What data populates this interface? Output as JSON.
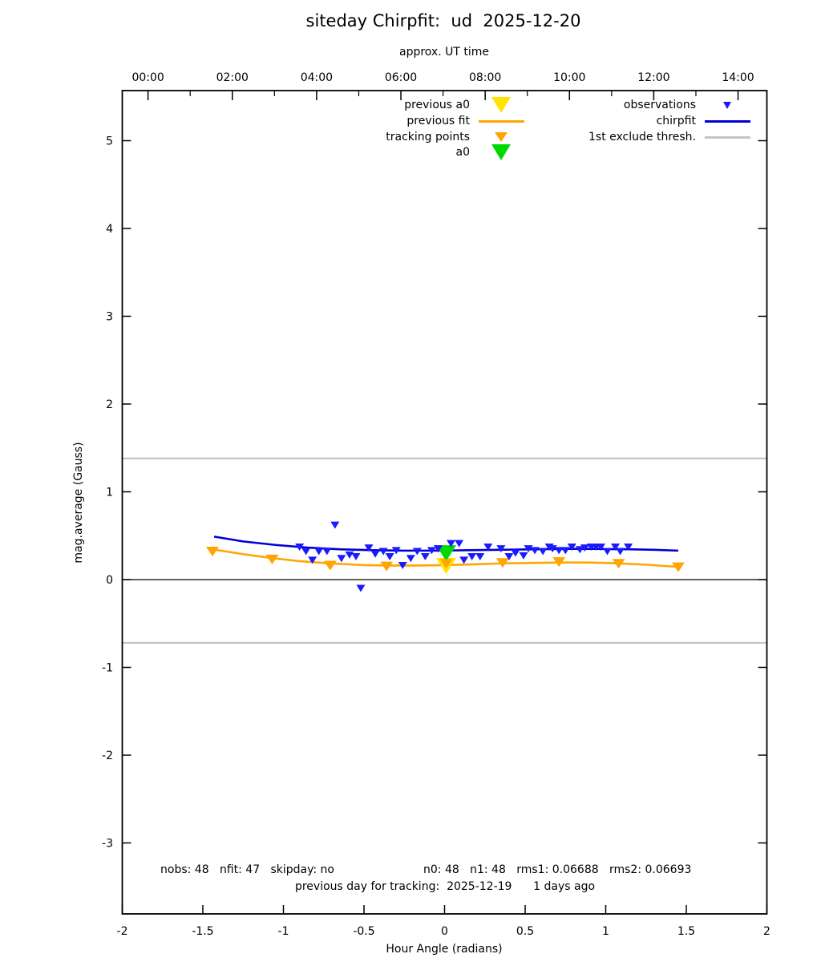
{
  "title": "siteday Chirpfit:  ud  2025-12-20",
  "top_axis": {
    "label": "approx. UT time"
  },
  "y_axis": {
    "label": "mag.average (Gauss)"
  },
  "x_axis": {
    "label": "Hour Angle (radians)"
  },
  "legend": {
    "left": [
      {
        "label": "previous a0",
        "marker": "triangle-down",
        "size": "large",
        "color": "#ffe400"
      },
      {
        "label": "previous fit",
        "marker": "line",
        "color": "#ffa500"
      },
      {
        "label": "tracking points",
        "marker": "triangle-down",
        "size": "small",
        "color": "#ffa500"
      },
      {
        "label": "a0",
        "marker": "triangle-down",
        "size": "large",
        "color": "#00d900"
      }
    ],
    "right": [
      {
        "label": "observations",
        "marker": "triangle-down",
        "size": "tiny",
        "color": "#1a1aff"
      },
      {
        "label": "chirpfit",
        "marker": "line",
        "color": "#0000d6"
      },
      {
        "label": "1st exclude thresh.",
        "marker": "line",
        "color": "#c4c4c4"
      }
    ]
  },
  "footer": {
    "line1_left": "nobs: 48   nfit: 47   skipday: no",
    "line1_right": "n0: 48   n1: 48   rms1: 0.06688   rms2: 0.06693",
    "line2": "previous day for tracking:  2025-12-19      1 days ago"
  },
  "chart_data": {
    "type": "scatter",
    "title": "siteday Chirpfit:  ud  2025-12-20",
    "xlabel": "Hour Angle (radians)",
    "ylabel": "mag.average (Gauss)",
    "top_axis_label": "approx. UT time",
    "xlim": [
      -2,
      2
    ],
    "ylim": [
      -3.85,
      5.57
    ],
    "grid": false,
    "legend_position": "inside-top",
    "yticks": [
      -3,
      -2,
      -1,
      0,
      1,
      2,
      3,
      4,
      5
    ],
    "xticks": [
      "-2",
      "-1.5",
      "-1",
      "-0.5",
      "0",
      "0.5",
      "1",
      "1.5",
      "2"
    ],
    "top_hour_ticks": {
      "major_hours": [
        0,
        2,
        4,
        6,
        8,
        10,
        12,
        14
      ],
      "minor_hours": [
        1,
        3,
        5,
        7,
        9,
        11,
        13
      ],
      "labels": [
        "00:00",
        "02:00",
        "04:00",
        "06:00",
        "08:00",
        "10:00",
        "12:00",
        "14:00"
      ],
      "ha_at_hour0": -1.84,
      "rad_per_hour": 0.2615
    },
    "zero_line": 0,
    "exclude_thresholds": [
      1.38,
      -0.72
    ],
    "colors": {
      "observations": "#1a1aff",
      "chirpfit": "#0000d6",
      "previous_fit": "#ffa500",
      "tracking_points": "#ffa500",
      "previous_a0": "#ffe400",
      "a0": "#00d900",
      "exclude_threshold": "#c4c4c4",
      "zero_line": "#000000"
    },
    "series": [
      {
        "name": "observations",
        "type": "scatter",
        "marker": "triangle-down",
        "color": "#1a1aff",
        "points": [
          [
            -0.9,
            0.37
          ],
          [
            -0.86,
            0.32
          ],
          [
            -0.82,
            0.22
          ],
          [
            -0.78,
            0.32
          ],
          [
            -0.73,
            0.32
          ],
          [
            -0.68,
            0.62
          ],
          [
            -0.64,
            0.24
          ],
          [
            -0.59,
            0.28
          ],
          [
            -0.55,
            0.26
          ],
          [
            -0.52,
            -0.1
          ],
          [
            -0.47,
            0.36
          ],
          [
            -0.43,
            0.29
          ],
          [
            -0.38,
            0.32
          ],
          [
            -0.34,
            0.26
          ],
          [
            -0.3,
            0.33
          ],
          [
            -0.26,
            0.16
          ],
          [
            -0.21,
            0.24
          ],
          [
            -0.17,
            0.32
          ],
          [
            -0.12,
            0.26
          ],
          [
            -0.08,
            0.33
          ],
          [
            -0.04,
            0.35
          ],
          [
            0.04,
            0.41
          ],
          [
            0.09,
            0.41
          ],
          [
            0.12,
            0.22
          ],
          [
            0.17,
            0.26
          ],
          [
            0.22,
            0.26
          ],
          [
            0.27,
            0.37
          ],
          [
            0.35,
            0.35
          ],
          [
            0.4,
            0.26
          ],
          [
            0.44,
            0.3
          ],
          [
            0.49,
            0.27
          ],
          [
            0.52,
            0.35
          ],
          [
            0.56,
            0.33
          ],
          [
            0.61,
            0.32
          ],
          [
            0.65,
            0.37
          ],
          [
            0.67,
            0.35
          ],
          [
            0.71,
            0.33
          ],
          [
            0.75,
            0.33
          ],
          [
            0.79,
            0.37
          ],
          [
            0.84,
            0.34
          ],
          [
            0.87,
            0.36
          ],
          [
            0.91,
            0.37
          ],
          [
            0.94,
            0.37
          ],
          [
            0.97,
            0.37
          ],
          [
            1.01,
            0.32
          ],
          [
            1.06,
            0.37
          ],
          [
            1.09,
            0.32
          ],
          [
            1.14,
            0.37
          ]
        ]
      },
      {
        "name": "chirpfit",
        "type": "line",
        "color": "#0000d6",
        "points": [
          [
            -1.43,
            0.49
          ],
          [
            -1.25,
            0.435
          ],
          [
            -1.05,
            0.395
          ],
          [
            -0.85,
            0.365
          ],
          [
            -0.65,
            0.345
          ],
          [
            -0.45,
            0.335
          ],
          [
            -0.25,
            0.33
          ],
          [
            -0.05,
            0.33
          ],
          [
            0.15,
            0.335
          ],
          [
            0.35,
            0.34
          ],
          [
            0.55,
            0.345
          ],
          [
            0.75,
            0.35
          ],
          [
            0.95,
            0.35
          ],
          [
            1.15,
            0.345
          ],
          [
            1.3,
            0.34
          ],
          [
            1.45,
            0.33
          ]
        ]
      },
      {
        "name": "previous fit",
        "type": "line",
        "color": "#ffa500",
        "points": [
          [
            -1.44,
            0.345
          ],
          [
            -1.25,
            0.29
          ],
          [
            -1.07,
            0.245
          ],
          [
            -0.9,
            0.21
          ],
          [
            -0.71,
            0.185
          ],
          [
            -0.5,
            0.165
          ],
          [
            -0.36,
            0.16
          ],
          [
            -0.2,
            0.16
          ],
          [
            0.01,
            0.165
          ],
          [
            0.2,
            0.175
          ],
          [
            0.36,
            0.185
          ],
          [
            0.55,
            0.19
          ],
          [
            0.71,
            0.195
          ],
          [
            0.9,
            0.195
          ],
          [
            1.08,
            0.185
          ],
          [
            1.25,
            0.17
          ],
          [
            1.45,
            0.145
          ]
        ]
      },
      {
        "name": "tracking points",
        "type": "scatter",
        "marker": "triangle-down",
        "color": "#ffa500",
        "points": [
          [
            -1.44,
            0.32
          ],
          [
            -1.07,
            0.23
          ],
          [
            -0.71,
            0.16
          ],
          [
            -0.36,
            0.15
          ],
          [
            0.01,
            0.18
          ],
          [
            0.36,
            0.19
          ],
          [
            0.71,
            0.2
          ],
          [
            1.08,
            0.18
          ],
          [
            1.45,
            0.14
          ]
        ]
      },
      {
        "name": "previous a0",
        "type": "scatter",
        "marker": "triangle-down",
        "color": "#ffe400",
        "points": [
          [
            0.01,
            0.155
          ]
        ]
      },
      {
        "name": "a0",
        "type": "scatter",
        "marker": "triangle-down",
        "color": "#00d900",
        "points": [
          [
            0.01,
            0.3
          ]
        ]
      }
    ],
    "stats": {
      "nobs": 48,
      "nfit": 47,
      "skipday": "no",
      "n0": 48,
      "n1": 48,
      "rms1": 0.06688,
      "rms2": 0.06693,
      "previous_day_for_tracking": "2025-12-19",
      "days_ago": "1 days ago"
    }
  }
}
